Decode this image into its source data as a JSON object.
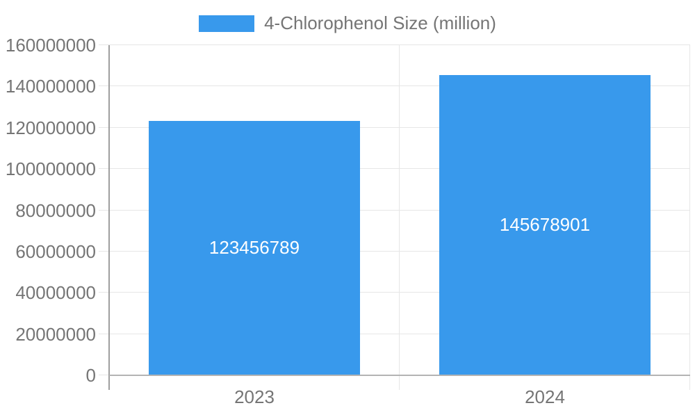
{
  "legend": {
    "swatch_color": "#3899ec",
    "label": "4-Chlorophenol Size (million)"
  },
  "chart_data": {
    "type": "bar",
    "title": "4-Chlorophenol Size (million)",
    "categories": [
      "2023",
      "2024"
    ],
    "series": [
      {
        "name": "4-Chlorophenol Size (million)",
        "values": [
          123456789,
          145678901
        ]
      }
    ],
    "bar_labels": [
      "123456789",
      "145678901"
    ],
    "xlabel": "",
    "ylabel": "",
    "ylim": [
      0,
      160000000
    ],
    "yticks": [
      0,
      20000000,
      40000000,
      60000000,
      80000000,
      100000000,
      120000000,
      140000000,
      160000000
    ],
    "grid": true,
    "legend_position": "top-center",
    "colors": {
      "bar": "#3899ec",
      "bar_label": "#ffffff",
      "axis_text": "#757575",
      "gridline": "#e6e6e6",
      "baseline": "#b3b3b3",
      "axis_line": "#9e9e9e"
    }
  }
}
